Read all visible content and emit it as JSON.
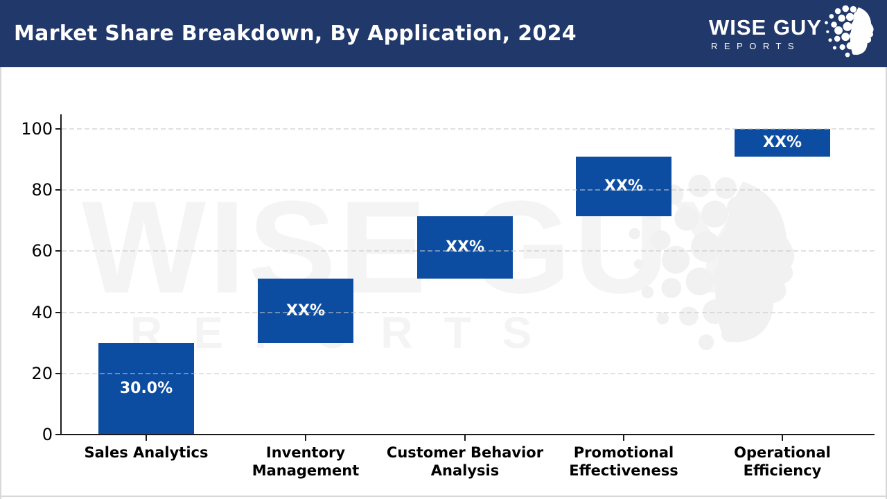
{
  "header": {
    "title": "Market Share Breakdown, By Application, 2024",
    "logo": {
      "line1": "WISE GUY",
      "line2": "REPORTS"
    }
  },
  "watermark": {
    "line1": "WISE GUY",
    "line2": "REPORTS"
  },
  "chart_data": {
    "type": "bar",
    "subtype": "waterfall",
    "title": "Market Share Breakdown, By Application, 2024",
    "categories": [
      "Sales Analytics",
      "Inventory Management",
      "Customer Behavior Analysis",
      "Promotional Effectiveness",
      "Operational Efficiency"
    ],
    "category_lines": [
      [
        "Sales Analytics"
      ],
      [
        "Inventory",
        "Management"
      ],
      [
        "Customer Behavior",
        "Analysis"
      ],
      [
        "Promotional",
        "Effectiveness"
      ],
      [
        "Operational",
        "Efficiency"
      ]
    ],
    "segments": [
      {
        "category": "Sales Analytics",
        "start": 0,
        "end": 30,
        "label": "30.0%"
      },
      {
        "category": "Inventory Management",
        "start": 30,
        "end": 51,
        "label": "XX%"
      },
      {
        "category": "Customer Behavior Analysis",
        "start": 51,
        "end": 71.5,
        "label": "XX%"
      },
      {
        "category": "Promotional Effectiveness",
        "start": 71.5,
        "end": 91,
        "label": "XX%"
      },
      {
        "category": "Operational Efficiency",
        "start": 91,
        "end": 100,
        "label": "XX%"
      }
    ],
    "yticks": [
      0,
      20,
      40,
      60,
      80,
      100
    ],
    "ylim": [
      0,
      105
    ],
    "xlabel": "",
    "ylabel": "",
    "grid": "dashed-horizontal",
    "legend": "none"
  },
  "colors": {
    "header_bg": "#21386b",
    "bar": "#0d4da1",
    "bar_label": "#ffffff",
    "axis": "#1a1a1a",
    "grid": "#c6c6c6",
    "watermark": "#f4f4f4"
  }
}
